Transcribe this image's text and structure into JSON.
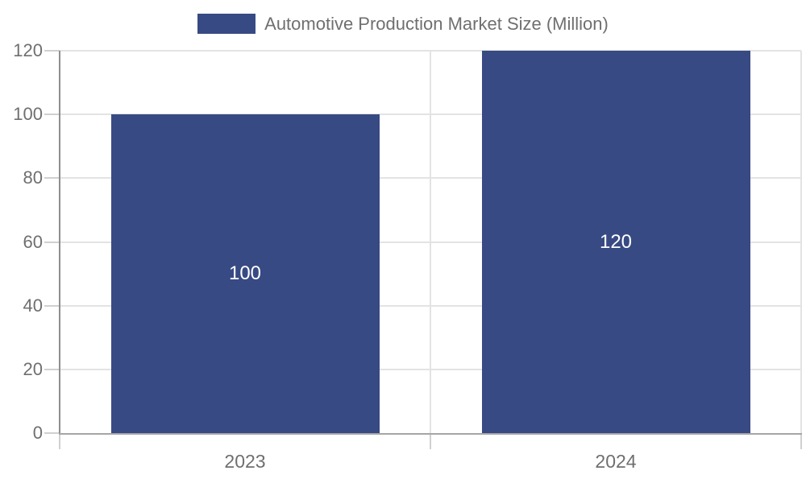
{
  "chart_data": {
    "type": "bar",
    "title": "Automotive Production Market Size (Million)",
    "categories": [
      "2023",
      "2024"
    ],
    "values": [
      100,
      120
    ],
    "value_labels": [
      "100",
      "120"
    ],
    "xlabel": "",
    "ylabel": "",
    "ylim": [
      0,
      120
    ],
    "yticks": [
      0,
      20,
      40,
      60,
      80,
      100,
      120
    ],
    "grid": true,
    "legend": {
      "position": "top",
      "label": "Automotive Production Market Size (Million)"
    },
    "colors": {
      "bar": "#384A83",
      "value_label": "#ffffff",
      "y_axis": "#8f8f8f",
      "x_axis": "#a6a6a6",
      "grid": "#e3e3e3",
      "tick": "#d0d0d0",
      "text": "#6f6f6f"
    }
  }
}
